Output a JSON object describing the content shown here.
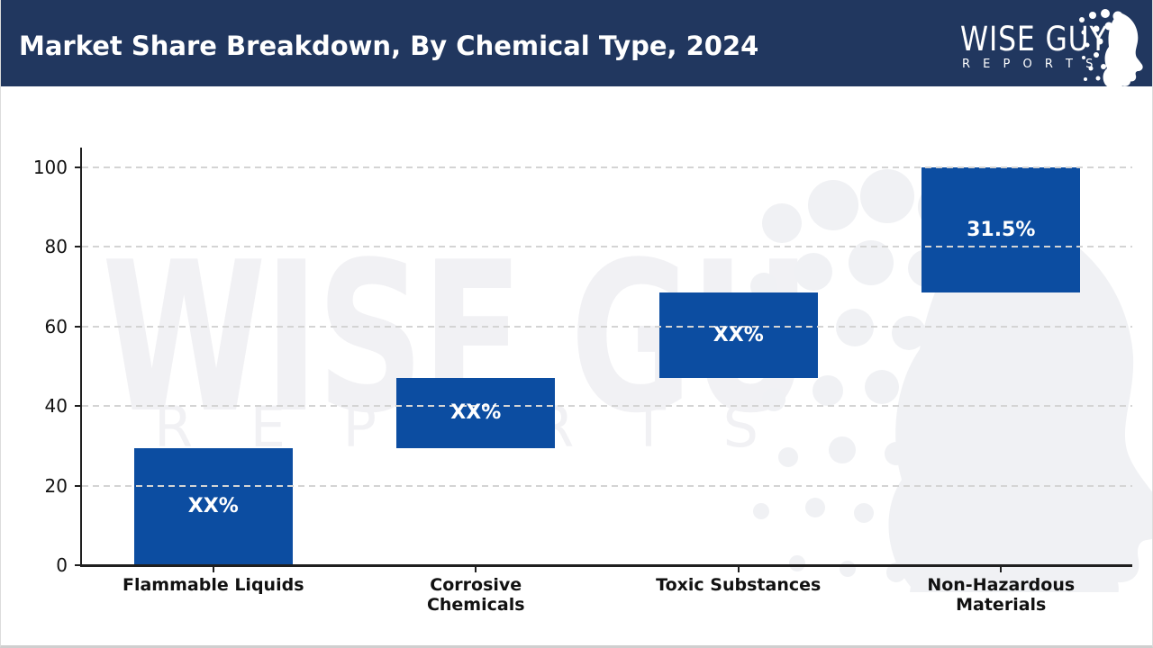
{
  "header": {
    "title": "Market Share Breakdown, By Chemical Type, 2024",
    "bg_color": "#21375f",
    "logo": {
      "name": "WISE GUY",
      "sub": "R E P O R T S"
    }
  },
  "watermark": {
    "line1": "WISE GU",
    "line2": "R E P O R T S"
  },
  "chart_data": {
    "type": "bar",
    "subtype": "waterfall-breakdown",
    "title": "Market Share Breakdown, By Chemical Type, 2024",
    "unit": "% market share",
    "ylim": [
      0,
      100
    ],
    "y_ticks": [
      0,
      20,
      40,
      60,
      80,
      100
    ],
    "grid": "dashed horizontal, drawn over bars",
    "gridline_color": "#d4d4d4",
    "bar_color": "#0c4da1",
    "categories": [
      "Flammable Liquids",
      "Corrosive Chemicals",
      "Toxic Substances",
      "Non-Hazardous Materials"
    ],
    "category_label_lines": [
      [
        "Flammable Liquids"
      ],
      [
        "Corrosive",
        "Chemicals"
      ],
      [
        "Toxic Substances"
      ],
      [
        "Non-Hazardous",
        "Materials"
      ]
    ],
    "segments": [
      {
        "category": "Flammable Liquids",
        "start": 0,
        "end": 29.5,
        "value": 29.5,
        "label": "XX%"
      },
      {
        "category": "Corrosive Chemicals",
        "start": 29.5,
        "end": 47,
        "value": 17.5,
        "label": "XX%"
      },
      {
        "category": "Toxic Substances",
        "start": 47,
        "end": 68.5,
        "value": 21.5,
        "label": "XX%"
      },
      {
        "category": "Non-Hazardous Materials",
        "start": 68.5,
        "end": 100,
        "value": 31.5,
        "label": "31.5%"
      }
    ]
  }
}
